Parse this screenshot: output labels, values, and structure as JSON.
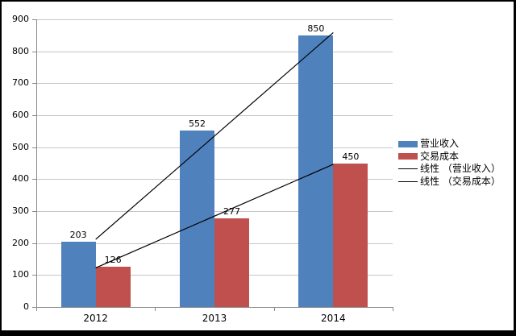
{
  "chart_data": {
    "type": "bar",
    "title": "",
    "categories": [
      "2012",
      "2013",
      "2014"
    ],
    "series": [
      {
        "name": "营业收入",
        "color": "#4F81BD",
        "values": [
          203,
          552,
          850
        ]
      },
      {
        "name": "交易成本",
        "color": "#C0504D",
        "values": [
          126,
          277,
          450
        ]
      }
    ],
    "trendlines": [
      {
        "name": "线性 （营业收入）",
        "series_index": 0,
        "color": "#000000"
      },
      {
        "name": "线性 （交易成本）",
        "series_index": 1,
        "color": "#000000"
      }
    ],
    "ylim": [
      0,
      900
    ],
    "ytick_step": 100,
    "yticks": [
      "0",
      "100",
      "200",
      "300",
      "400",
      "500",
      "600",
      "700",
      "800",
      "900"
    ],
    "grid": true,
    "data_labels": true,
    "legend_position": "right"
  },
  "colors": {
    "gridline": "#C6C6C6",
    "axis": "#8A8A8A",
    "text": "#000000",
    "plot_background": "#FFFFFF",
    "frame": "#000000"
  }
}
